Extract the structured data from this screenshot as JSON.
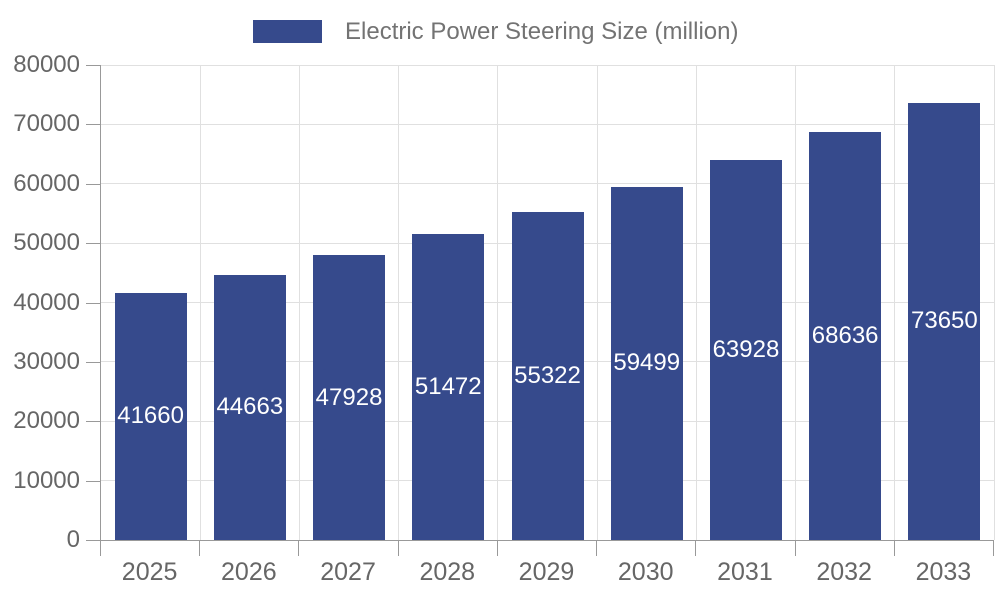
{
  "chart_data": {
    "type": "bar",
    "title": "Electric Power Steering Size (million)",
    "legend": [
      "Electric Power Steering Size (million)"
    ],
    "legend_position": "top",
    "categories": [
      "2025",
      "2026",
      "2027",
      "2028",
      "2029",
      "2030",
      "2031",
      "2032",
      "2033"
    ],
    "series": [
      {
        "name": "Electric Power Steering Size (million)",
        "values": [
          41660,
          44663,
          47928,
          51472,
          55322,
          59499,
          63928,
          68636,
          73650
        ]
      }
    ],
    "value_labels_shown": true,
    "value_label_position": "inside-center",
    "xlabel": "",
    "ylabel": "",
    "ylim": [
      0,
      80000
    ],
    "y_ticks": [
      0,
      10000,
      20000,
      30000,
      40000,
      50000,
      60000,
      70000,
      80000
    ],
    "grid": true,
    "colors": {
      "bar": "#364A8C",
      "grid": "#E0E0E0",
      "axis": "#999999",
      "tick_label": "#666666",
      "legend_text": "#737373",
      "value_label": "#FFFFFF",
      "background": "#FFFFFF"
    }
  }
}
